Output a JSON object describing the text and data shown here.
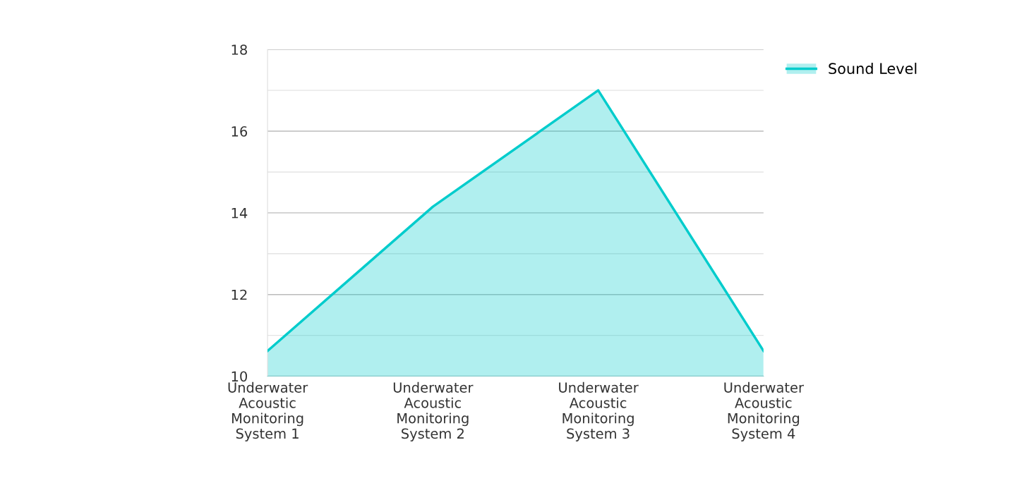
{
  "chart_data": {
    "type": "area",
    "categories": [
      "Underwater Acoustic Monitoring System 1",
      "Underwater Acoustic Monitoring System 2",
      "Underwater Acoustic Monitoring System 3",
      "Underwater Acoustic Monitoring System 4"
    ],
    "series": [
      {
        "name": "Sound Level",
        "color": "#00cccc",
        "values": [
          10.62,
          14.15,
          17.0,
          10.62
        ]
      }
    ],
    "ylim": [
      10,
      18
    ],
    "yticks": [
      10,
      {
        "value": 11,
        "label": null
      },
      12,
      {
        "value": 13,
        "label": null
      },
      14,
      {
        "value": 15,
        "label": null
      },
      16,
      {
        "value": 17,
        "label": null
      },
      18
    ],
    "grid": "y",
    "legend": "top right",
    "marker": "none",
    "line_style": "solid"
  }
}
